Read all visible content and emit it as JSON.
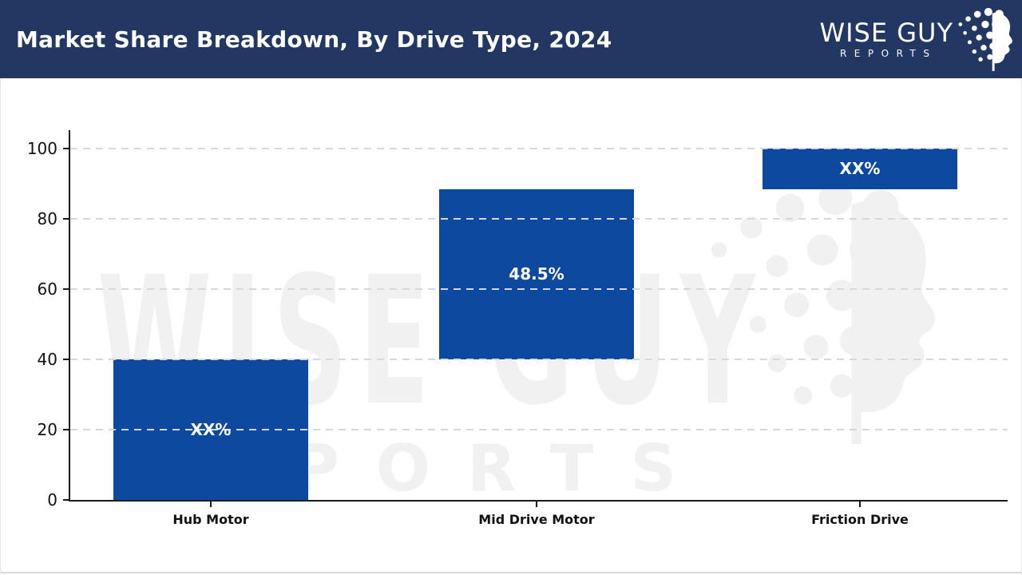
{
  "header": {
    "title": "Market Share Breakdown, By Drive Type, 2024",
    "logo": {
      "wordmark": "WISE GUY",
      "subtext": "REPORTS"
    }
  },
  "watermark": {
    "line1": "WISE GUY",
    "line2": "REPORTS"
  },
  "colors": {
    "header_bg": "#223862",
    "bar": "#0d4a9f",
    "grid": "#d8d8d8",
    "axis": "#1a1a1a",
    "value_label": "#ffffff",
    "watermark": "#f1f1f2"
  },
  "chart_data": {
    "type": "bar",
    "subtype": "floating waterfall-style segments, one per category",
    "title": "Market Share Breakdown, By Drive Type, 2024",
    "categories": [
      "Hub Motor",
      "Mid Drive Motor",
      "Friction Drive"
    ],
    "segments": [
      {
        "category": "Hub Motor",
        "start": 0,
        "end": 40,
        "value_label": "XX%"
      },
      {
        "category": "Mid Drive Motor",
        "start": 40,
        "end": 88.5,
        "value_label": "48.5%"
      },
      {
        "category": "Friction Drive",
        "start": 88.5,
        "end": 100,
        "value_label": "XX%"
      }
    ],
    "xlabel": "",
    "ylabel": "",
    "ylim": [
      0,
      100
    ],
    "yticks": [
      0,
      20,
      40,
      60,
      80,
      100
    ],
    "grid": "horizontal dashed gridlines drawn over bars",
    "legend": "none"
  }
}
